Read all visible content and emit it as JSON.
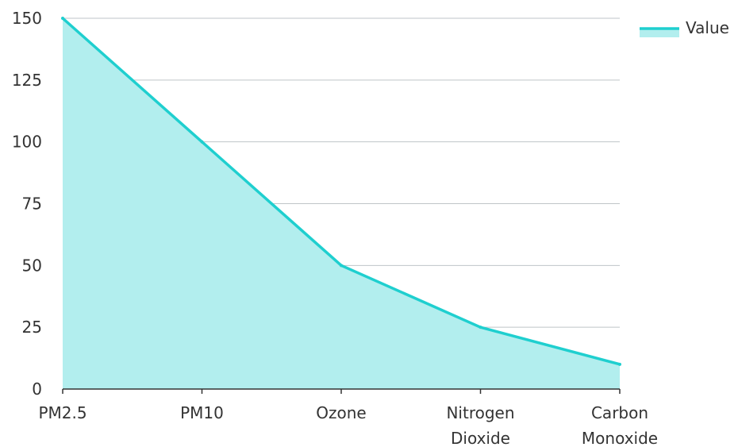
{
  "chart_data": {
    "type": "area",
    "categories": [
      "PM2.5",
      "PM10",
      "Ozone",
      "Nitrogen Dioxide",
      "Carbon Monoxide"
    ],
    "series": [
      {
        "name": "Value",
        "values": [
          150,
          100,
          50,
          25,
          10
        ]
      }
    ],
    "yticks": [
      0,
      25,
      50,
      75,
      100,
      125,
      150
    ],
    "ylim": [
      0,
      150
    ],
    "grid": true,
    "legend_position": "top-right",
    "colors": {
      "line": "#1fcfcf",
      "fill": "#b2eeee"
    }
  }
}
